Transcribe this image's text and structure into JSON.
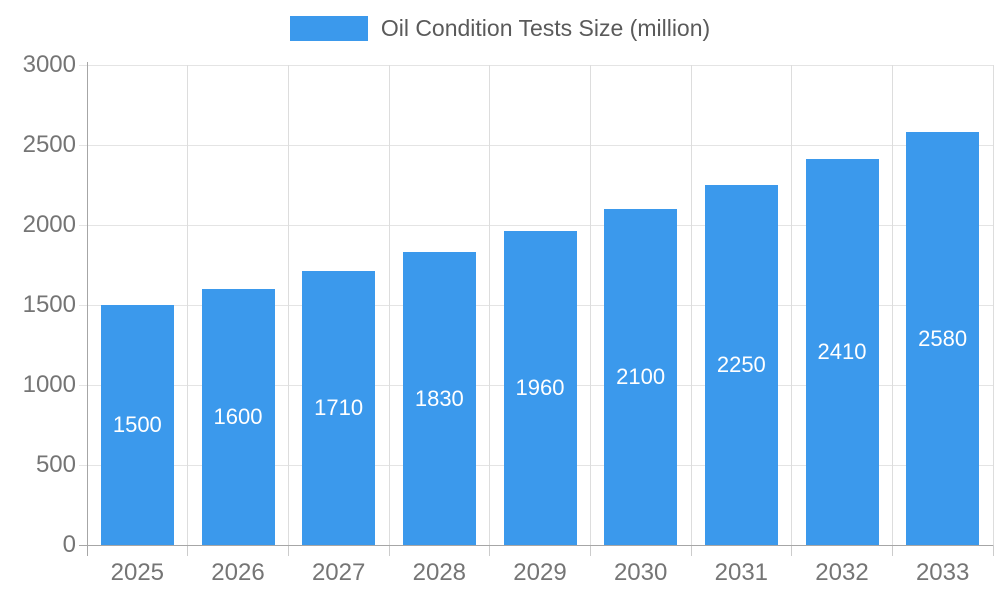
{
  "legend": {
    "label": "Oil Condition Tests Size (million)"
  },
  "colors": {
    "bar": "#3B99EC",
    "axis": "#A6A6A6",
    "grid_vertical": "#DDDDDD",
    "grid_horizontal": "#E4E4E4",
    "tick": "#CCCCCC",
    "tick_label": "#757575",
    "legend_text": "#5A5A5A",
    "value_label": "#FFFFFF",
    "background": "#FFFFFF"
  },
  "chart_data": {
    "type": "bar",
    "title": "Oil Condition Tests Size (million)",
    "categories": [
      "2025",
      "2026",
      "2027",
      "2028",
      "2029",
      "2030",
      "2031",
      "2032",
      "2033"
    ],
    "values": [
      1500,
      1600,
      1710,
      1830,
      1960,
      2100,
      2250,
      2410,
      2580
    ],
    "series": [
      {
        "name": "Oil Condition Tests Size (million)",
        "values": [
          1500,
          1600,
          1710,
          1830,
          1960,
          2100,
          2250,
          2410,
          2580
        ]
      }
    ],
    "xlabel": "",
    "ylabel": "",
    "ylim": [
      0,
      3000
    ],
    "yticks": [
      0,
      500,
      1000,
      1500,
      2000,
      2500,
      3000
    ],
    "grid": true,
    "legend_position": "top-center",
    "value_labels_position": "inside-center"
  }
}
